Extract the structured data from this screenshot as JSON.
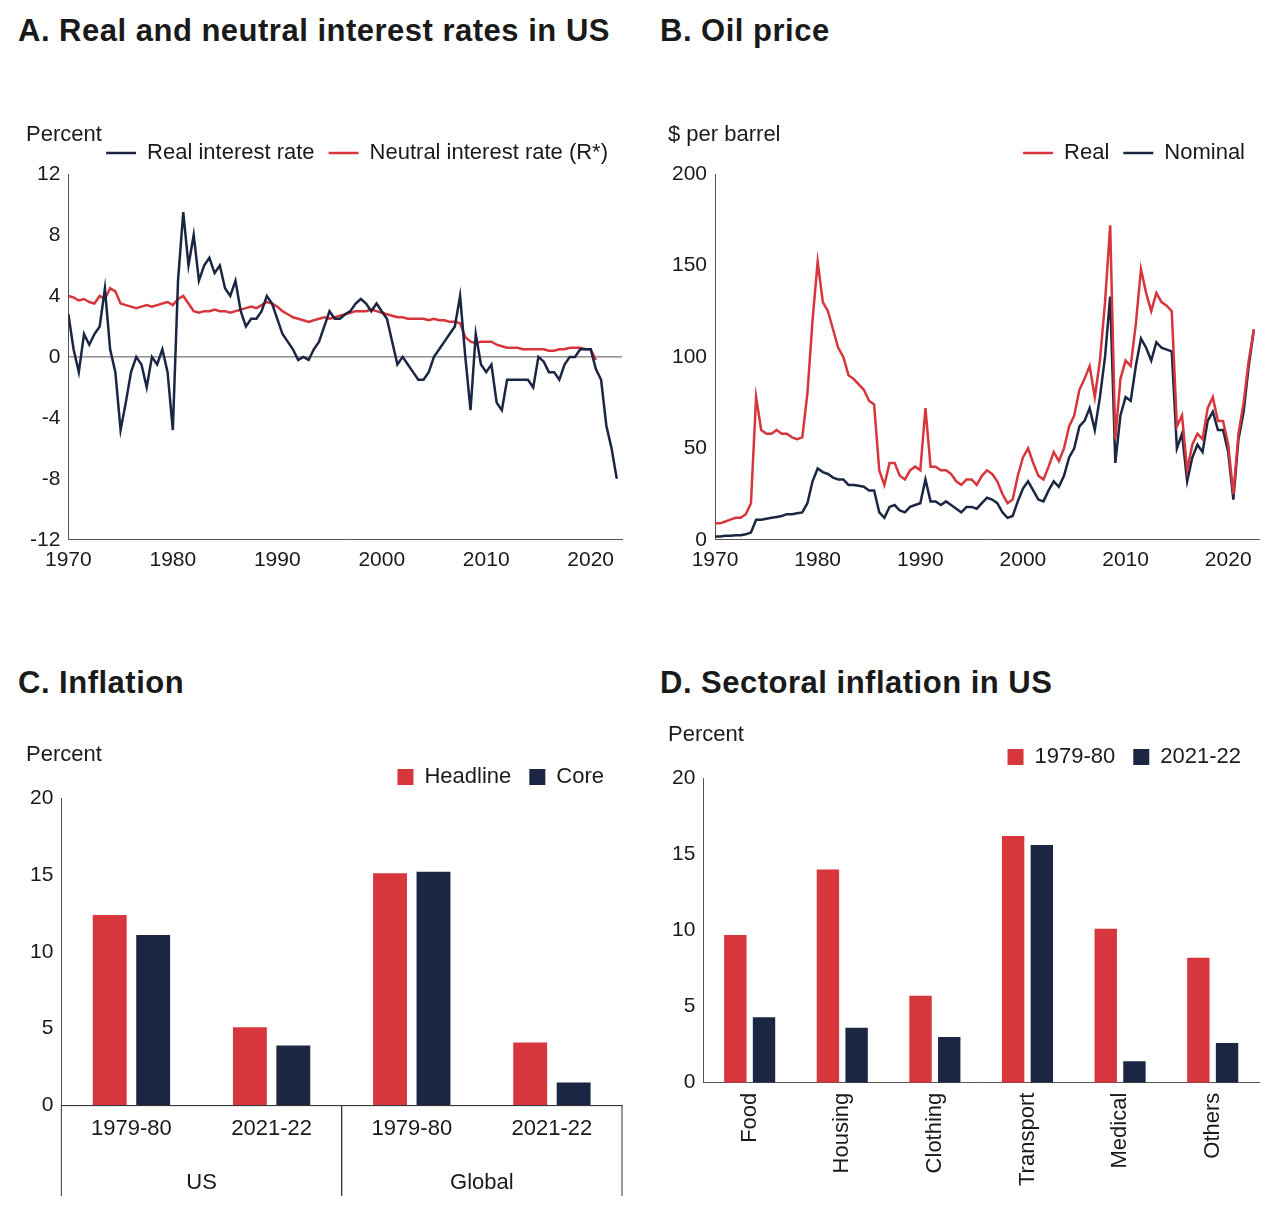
{
  "chart_data": [
    {
      "type": "line",
      "title": "A. Real and neutral interest rates in US",
      "ylabel": "Percent",
      "x": [
        1970,
        1970.5,
        1971,
        1971.5,
        1972,
        1972.5,
        1973,
        1973.5,
        1974,
        1974.5,
        1975,
        1975.5,
        1976,
        1976.5,
        1977,
        1977.5,
        1978,
        1978.5,
        1979,
        1979.5,
        1980,
        1980.5,
        1981,
        1981.5,
        1982,
        1982.5,
        1983,
        1983.5,
        1984,
        1984.5,
        1985,
        1985.5,
        1986,
        1986.5,
        1987,
        1987.5,
        1988,
        1988.5,
        1989,
        1989.5,
        1990,
        1990.5,
        1991,
        1991.5,
        1992,
        1992.5,
        1993,
        1993.5,
        1994,
        1994.5,
        1995,
        1995.5,
        1996,
        1996.5,
        1997,
        1997.5,
        1998,
        1998.5,
        1999,
        1999.5,
        2000,
        2000.5,
        2001,
        2001.5,
        2002,
        2002.5,
        2003,
        2003.5,
        2004,
        2004.5,
        2005,
        2005.5,
        2006,
        2006.5,
        2007,
        2007.5,
        2008,
        2008.5,
        2009,
        2009.5,
        2010,
        2010.5,
        2011,
        2011.5,
        2012,
        2012.5,
        2013,
        2013.5,
        2014,
        2014.5,
        2015,
        2015.5,
        2016,
        2016.5,
        2017,
        2017.5,
        2018,
        2018.5,
        2019,
        2019.5,
        2020,
        2020.5,
        2021,
        2021.5,
        2022,
        2022.5
      ],
      "series": [
        {
          "name": "Real interest rate",
          "color": "#1b2642",
          "values": [
            2.8,
            0.5,
            -1,
            1.5,
            0.8,
            1.5,
            2,
            4.5,
            0.5,
            -1,
            -4.8,
            -3,
            -1,
            0,
            -0.5,
            -2,
            0,
            -0.5,
            0.5,
            -1,
            -4.8,
            5,
            9.5,
            6,
            8,
            5,
            6,
            6.5,
            5.5,
            6,
            4.5,
            4,
            5,
            3,
            2,
            2.5,
            2.5,
            3,
            4,
            3.5,
            2.5,
            1.5,
            1,
            0.5,
            -0.2,
            0,
            -0.2,
            0.5,
            1,
            2,
            3,
            2.5,
            2.5,
            2.8,
            3,
            3.5,
            3.8,
            3.5,
            3,
            3.5,
            3,
            2.5,
            1,
            -0.5,
            0,
            -0.5,
            -1,
            -1.5,
            -1.5,
            -1,
            0,
            0.5,
            1,
            1.5,
            2,
            4,
            0,
            -3.5,
            1.5,
            -0.5,
            -1,
            -0.5,
            -3,
            -3.5,
            -1.5,
            -1.5,
            -1.5,
            -1.5,
            -1.5,
            -2,
            0,
            -0.3,
            -1,
            -1,
            -1.5,
            -0.5,
            0,
            0,
            0.5,
            0.5,
            0.5,
            -0.8,
            -1.5,
            -4.5,
            -6,
            -8
          ]
        },
        {
          "name": "Neutral interest rate (R*)",
          "color": "#d6363c",
          "values": [
            4,
            3.9,
            3.7,
            3.8,
            3.6,
            3.5,
            4,
            3.8,
            4.5,
            4.3,
            3.5,
            3.4,
            3.3,
            3.2,
            3.3,
            3.4,
            3.3,
            3.4,
            3.5,
            3.6,
            3.4,
            3.8,
            4,
            3.5,
            3,
            2.9,
            3,
            3,
            3.1,
            3,
            3,
            2.9,
            3,
            3.1,
            3.2,
            3.3,
            3.2,
            3.4,
            3.6,
            3.5,
            3.3,
            3,
            2.8,
            2.6,
            2.5,
            2.4,
            2.3,
            2.4,
            2.5,
            2.6,
            2.5,
            2.6,
            2.7,
            2.8,
            2.9,
            3,
            3,
            3,
            3.1,
            3,
            2.9,
            2.8,
            2.7,
            2.6,
            2.6,
            2.5,
            2.5,
            2.5,
            2.5,
            2.4,
            2.5,
            2.4,
            2.4,
            2.3,
            2.3,
            2.2,
            1.3,
            1,
            0.9,
            1,
            1,
            1,
            0.8,
            0.7,
            0.6,
            0.6,
            0.6,
            0.5,
            0.5,
            0.5,
            0.5,
            0.5,
            0.4,
            0.4,
            0.5,
            0.5,
            0.6,
            0.6,
            0.6,
            0.5,
            0.5,
            -0.2,
            null,
            null,
            null,
            null
          ]
        }
      ],
      "xlim": [
        1970,
        2023
      ],
      "xticks": [
        1970,
        1980,
        1990,
        2000,
        2010,
        2020
      ],
      "ylim": [
        -12,
        12
      ],
      "yticks": [
        -12,
        -8,
        -4,
        0,
        4,
        8,
        12
      ],
      "grid": false,
      "legend": "top"
    },
    {
      "type": "line",
      "title": "B. Oil price",
      "ylabel": "$ per barrel",
      "x": [
        1970,
        1970.5,
        1971,
        1971.5,
        1972,
        1972.5,
        1973,
        1973.5,
        1974,
        1974.5,
        1975,
        1975.5,
        1976,
        1976.5,
        1977,
        1977.5,
        1978,
        1978.5,
        1979,
        1979.5,
        1980,
        1980.5,
        1981,
        1981.5,
        1982,
        1982.5,
        1983,
        1983.5,
        1984,
        1984.5,
        1985,
        1985.5,
        1986,
        1986.5,
        1987,
        1987.5,
        1988,
        1988.5,
        1989,
        1989.5,
        1990,
        1990.5,
        1991,
        1991.5,
        1992,
        1992.5,
        1993,
        1993.5,
        1994,
        1994.5,
        1995,
        1995.5,
        1996,
        1996.5,
        1997,
        1997.5,
        1998,
        1998.5,
        1999,
        1999.5,
        2000,
        2000.5,
        2001,
        2001.5,
        2002,
        2002.5,
        2003,
        2003.5,
        2004,
        2004.5,
        2005,
        2005.5,
        2006,
        2006.5,
        2007,
        2007.5,
        2008,
        2008.5,
        2009,
        2009.5,
        2010,
        2010.5,
        2011,
        2011.5,
        2012,
        2012.5,
        2013,
        2013.5,
        2014,
        2014.5,
        2015,
        2015.5,
        2016,
        2016.5,
        2017,
        2017.5,
        2018,
        2018.5,
        2019,
        2019.5,
        2020,
        2020.5,
        2021,
        2021.5,
        2022,
        2022.5
      ],
      "series": [
        {
          "name": "Real",
          "color": "#d6363c",
          "values": [
            9,
            9,
            10,
            11,
            12,
            12,
            14,
            20,
            78,
            60,
            58,
            58,
            60,
            58,
            58,
            56,
            55,
            56,
            80,
            120,
            152,
            130,
            125,
            115,
            105,
            100,
            90,
            88,
            85,
            82,
            76,
            74,
            38,
            30,
            42,
            42,
            35,
            33,
            38,
            40,
            38,
            72,
            40,
            40,
            38,
            38,
            36,
            32,
            30,
            33,
            33,
            30,
            35,
            38,
            36,
            32,
            25,
            20,
            22,
            35,
            45,
            50,
            42,
            35,
            33,
            40,
            48,
            43,
            50,
            62,
            68,
            82,
            88,
            95,
            78,
            98,
            130,
            172,
            55,
            88,
            98,
            95,
            118,
            148,
            135,
            125,
            135,
            130,
            128,
            125,
            62,
            68,
            38,
            52,
            58,
            55,
            72,
            78,
            65,
            65,
            52,
            25,
            58,
            75,
            98,
            115
          ]
        },
        {
          "name": "Nominal",
          "color": "#1b2642",
          "values": [
            1.8,
            1.8,
            2.2,
            2.2,
            2.5,
            2.5,
            3,
            4,
            11,
            11,
            11.5,
            12,
            12.5,
            13,
            14,
            14,
            14.5,
            15,
            20,
            32,
            39,
            37,
            36,
            34,
            33,
            33,
            30,
            30,
            29.5,
            29,
            27,
            27,
            15,
            12,
            18,
            19,
            16,
            15,
            18,
            19,
            20,
            33,
            21,
            21,
            19,
            21,
            19,
            17,
            15,
            18,
            18,
            17,
            20,
            23,
            22,
            20,
            15,
            12,
            13,
            21,
            28,
            32,
            27,
            22,
            21,
            27,
            32,
            29,
            35,
            45,
            50,
            62,
            65,
            72,
            60,
            78,
            100,
            133,
            42,
            68,
            78,
            76,
            95,
            110,
            105,
            98,
            108,
            105,
            104,
            103,
            50,
            58,
            32,
            45,
            52,
            48,
            65,
            70,
            60,
            60,
            48,
            22,
            55,
            70,
            95,
            115
          ]
        }
      ],
      "xlim": [
        1970,
        2023
      ],
      "xticks": [
        1970,
        1980,
        1990,
        2000,
        2010,
        2020
      ],
      "ylim": [
        0,
        200
      ],
      "yticks": [
        0,
        50,
        100,
        150,
        200
      ],
      "grid": false,
      "legend": "top"
    },
    {
      "type": "bar",
      "title": "C. Inflation",
      "ylabel": "Percent",
      "categories": [
        "1979-80",
        "2021-22",
        "1979-80",
        "2021-22"
      ],
      "groups": [
        "US",
        "US",
        "Global",
        "Global"
      ],
      "series": [
        {
          "name": "Headline",
          "color": "#d6363c",
          "values": [
            12.4,
            5.1,
            15.1,
            4.1
          ]
        },
        {
          "name": "Core",
          "color": "#1b2642",
          "values": [
            11.1,
            3.9,
            15.2,
            1.5
          ]
        }
      ],
      "ylim": [
        0,
        20
      ],
      "yticks": [
        0,
        5,
        10,
        15,
        20
      ],
      "grid": false,
      "legend": "top"
    },
    {
      "type": "bar",
      "title": "D. Sectoral inflation in US",
      "ylabel": "Percent",
      "categories": [
        "Food",
        "Housing",
        "Clothing",
        "Transport",
        "Medical",
        "Others"
      ],
      "series": [
        {
          "name": "1979-80",
          "color": "#d6363c",
          "values": [
            9.7,
            14.0,
            5.7,
            16.2,
            10.1,
            8.2
          ]
        },
        {
          "name": "2021-22",
          "color": "#1b2642",
          "values": [
            4.3,
            3.6,
            3.0,
            15.6,
            1.4,
            2.6
          ]
        }
      ],
      "ylim": [
        0,
        20
      ],
      "yticks": [
        0,
        5,
        10,
        15,
        20
      ],
      "grid": false,
      "legend": "top"
    }
  ]
}
